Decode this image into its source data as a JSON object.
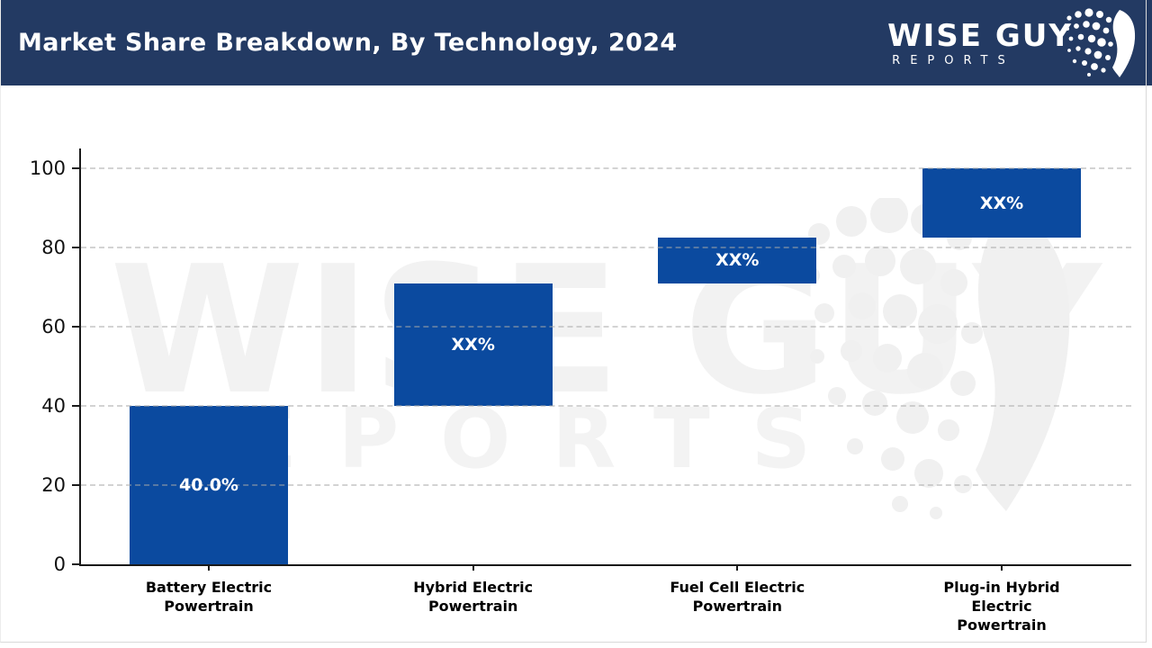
{
  "header": {
    "title": "Market Share Breakdown, By Technology, 2024",
    "logo": {
      "name": "WISE GUY",
      "sub": "REPORTS"
    }
  },
  "watermark": {
    "name": "WISE GUY",
    "sub": "REPORTS"
  },
  "colors": {
    "header_bg": "#233a63",
    "bar": "#0b4a9f",
    "bar_label_text": "#ffffff",
    "axis": "#1a1a1a",
    "grid": "#d6d6d6",
    "watermark": "#f2f2f2",
    "frame": "#d9d9d9"
  },
  "chart_data": {
    "type": "bar",
    "subtype": "waterfall",
    "title": "Market Share Breakdown, By Technology, 2024",
    "categories": [
      "Battery Electric Powertrain",
      "Hybrid Electric Powertrain",
      "Fuel Cell Electric Powertrain",
      "Plug-in Hybrid Electric Powertrain"
    ],
    "category_label_lines": [
      [
        "Battery Electric",
        "Powertrain"
      ],
      [
        "Hybrid Electric",
        "Powertrain"
      ],
      [
        "Fuel Cell Electric",
        "Powertrain"
      ],
      [
        "Plug-in Hybrid",
        "Electric",
        "Powertrain"
      ]
    ],
    "segments": [
      {
        "category": "Battery Electric Powertrain",
        "start": 0,
        "end": 40,
        "label": "40.0%"
      },
      {
        "category": "Hybrid Electric Powertrain",
        "start": 40,
        "end": 71,
        "label": "XX%"
      },
      {
        "category": "Fuel Cell Electric Powertrain",
        "start": 71,
        "end": 82.5,
        "label": "XX%"
      },
      {
        "category": "Plug-in Hybrid Electric Powertrain",
        "start": 82.5,
        "end": 100,
        "label": "XX%"
      }
    ],
    "xlabel": "",
    "ylabel": "",
    "ylim": [
      0,
      105
    ],
    "yticks": [
      0,
      20,
      40,
      60,
      80,
      100
    ],
    "grid": "horizontal-dashed",
    "legend": "none",
    "bar_color": "#0b4a9f"
  }
}
